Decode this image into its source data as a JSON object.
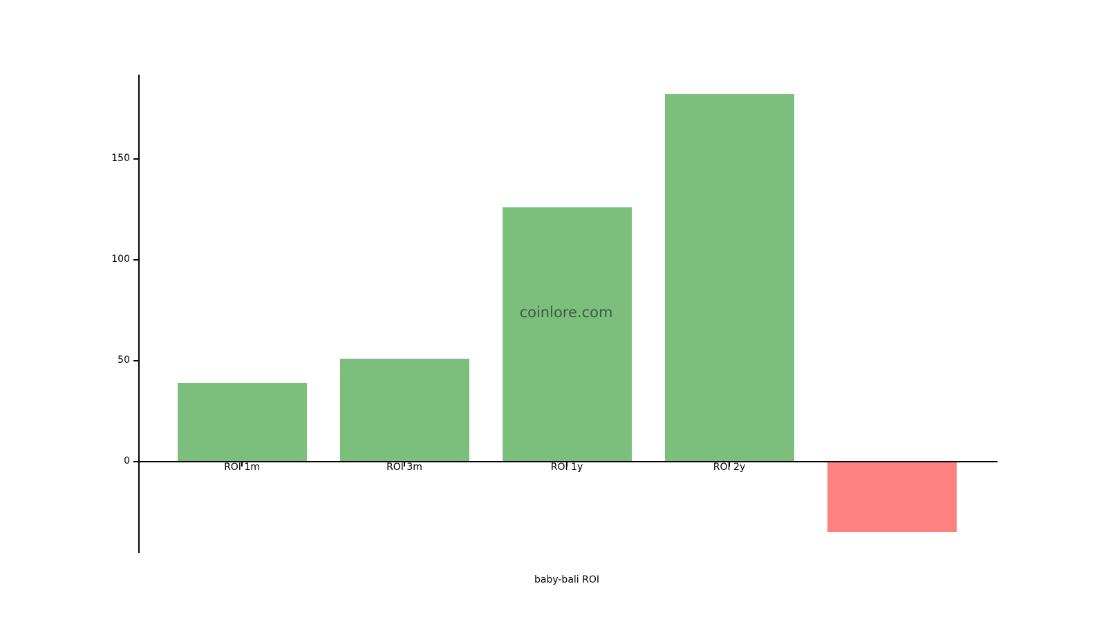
{
  "page": {
    "background_color": "#ffffff"
  },
  "chart_data": {
    "type": "bar",
    "categories": [
      "ROI 1m",
      "ROI 3m",
      "ROI 1y",
      "ROI 2y",
      ""
    ],
    "values": [
      39,
      51,
      126,
      182,
      -35
    ],
    "series": [
      {
        "name": "baby-bali ROI",
        "values": [
          39,
          51,
          126,
          182,
          -35
        ]
      }
    ],
    "title": "",
    "xlabel": "baby-bali ROI",
    "ylabel": "",
    "yticks": [
      0,
      50,
      100,
      150
    ],
    "ylim": [
      -45,
      192
    ],
    "grid": false,
    "legend": false,
    "watermark": "coinlore.com",
    "positive_color": "#7cbf7c",
    "negative_color": "#fd8181",
    "axis_color": "#000000",
    "tick_text_color": "#000000",
    "watermark_color": "#3b5a41"
  }
}
